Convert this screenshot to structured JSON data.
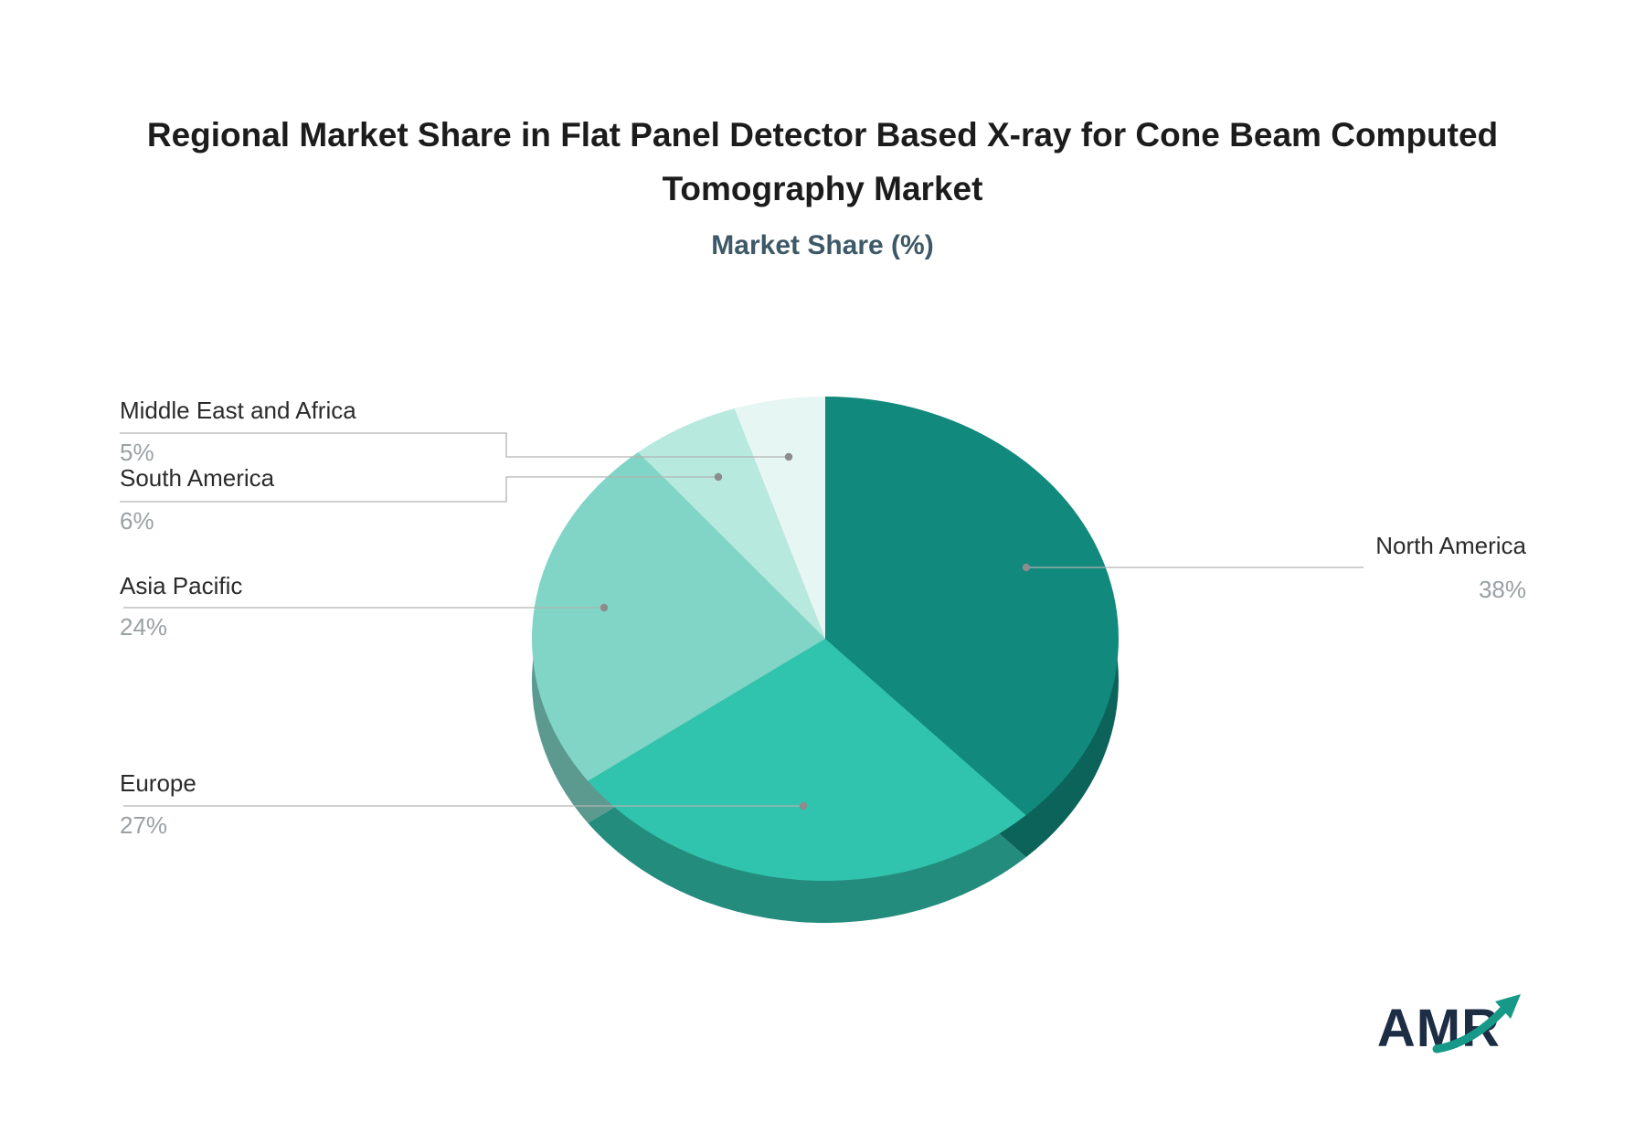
{
  "page": {
    "title": "Regional Market Share in Flat Panel Detector Based X-ray for Cone Beam Computed Tomography Market",
    "subtitle": "Market Share (%)"
  },
  "chart_data": {
    "type": "pie",
    "title": "Regional Market Share in Flat Panel Detector Based X-ray for Cone Beam Computed Tomography Market",
    "subtitle": "Market Share (%)",
    "unit": "%",
    "start_angle_deg": 0,
    "direction": "clockwise",
    "style": "3d-pie",
    "legend_position": "outside-leader-lines",
    "slices": [
      {
        "label": "North America",
        "value": 38,
        "display": "38%",
        "color": "#11897c"
      },
      {
        "label": "Europe",
        "value": 27,
        "display": "27%",
        "color": "#30c3ad"
      },
      {
        "label": "Asia Pacific",
        "value": 24,
        "display": "24%",
        "color": "#80d5c6"
      },
      {
        "label": "South America",
        "value": 6,
        "display": "6%",
        "color": "#b7e9df"
      },
      {
        "label": "Middle East and Africa",
        "value": 5,
        "display": "5%",
        "color": "#e6f6f2"
      }
    ]
  },
  "logo": {
    "text": "AMR"
  }
}
